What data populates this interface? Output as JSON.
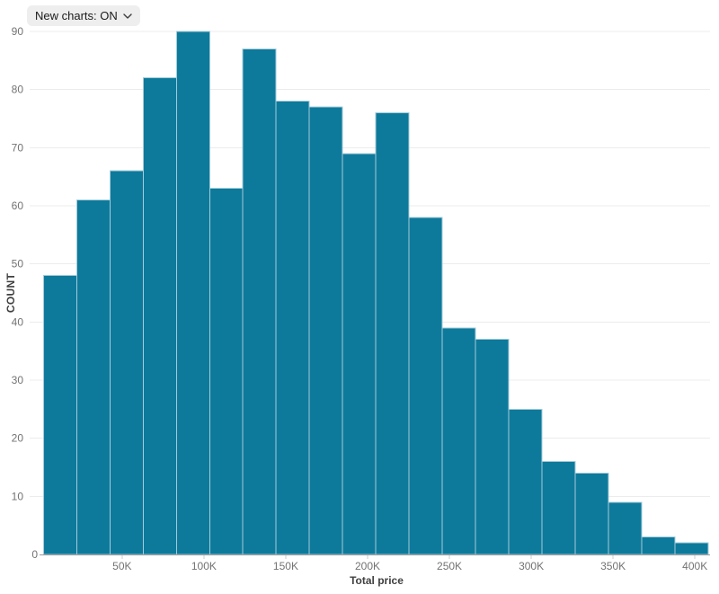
{
  "toolbar": {
    "new_charts_toggle": {
      "label": "New charts: ON",
      "icon": "chevron-down-icon"
    }
  },
  "chart_data": {
    "type": "bar",
    "subtype": "histogram",
    "title": "",
    "xlabel": "Total price",
    "ylabel": "COUNT",
    "x_ticks": [
      {
        "value_k": 50,
        "label": "50K"
      },
      {
        "value_k": 100,
        "label": "100K"
      },
      {
        "value_k": 150,
        "label": "150K"
      },
      {
        "value_k": 200,
        "label": "200K"
      },
      {
        "value_k": 250,
        "label": "250K"
      },
      {
        "value_k": 300,
        "label": "300K"
      },
      {
        "value_k": 350,
        "label": "350K"
      },
      {
        "value_k": 400,
        "label": "400K"
      }
    ],
    "y_ticks": [
      0,
      10,
      20,
      30,
      40,
      50,
      60,
      70,
      80,
      90
    ],
    "ylim": [
      0,
      90
    ],
    "bin_start_k": 2,
    "bin_width_k": 20.3,
    "counts": [
      48,
      61,
      66,
      82,
      90,
      63,
      87,
      78,
      77,
      69,
      76,
      58,
      39,
      37,
      25,
      16,
      14,
      9,
      3,
      2
    ],
    "total_count": 1000,
    "grid": true,
    "legend": "none",
    "colors": {
      "bar_fill": "#0e7a9b",
      "bar_stroke": "#a3cbd9",
      "gridline": "#ececec",
      "axis_line": "#999999",
      "tick_mark": "#cccccc",
      "tick_label": "#737373",
      "axis_title": "#404040"
    }
  }
}
